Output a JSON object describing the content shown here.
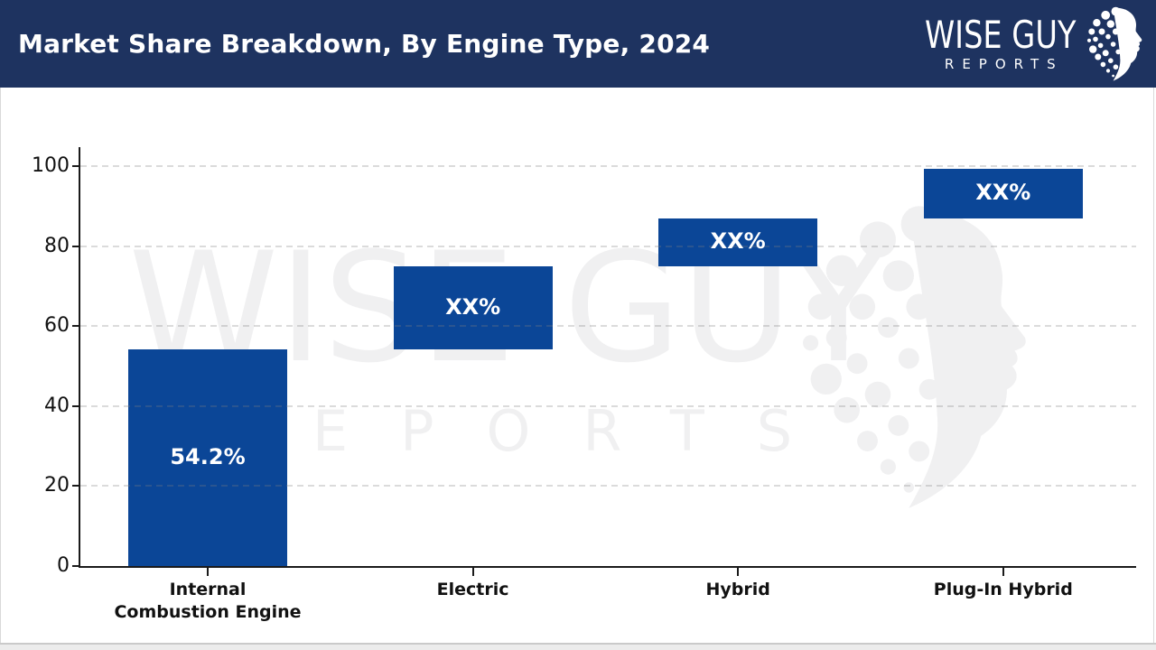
{
  "header": {
    "title": "Market Share Breakdown, By Engine Type, 2024",
    "logo": {
      "wordmark": "WISE GUY",
      "subtext": "REPORTS"
    }
  },
  "watermark": {
    "wordmark": "WISE GUY",
    "subtext": "REPORTS"
  },
  "colors": {
    "header_bg": "#1e3360",
    "bar": "#0b4697",
    "bar_label": "#ffffff",
    "grid": "#d9d9d9",
    "axis": "#1a1a1a",
    "watermark": "#f0f0f1"
  },
  "chart_data": {
    "type": "bar",
    "subtype": "waterfall",
    "title": "Market Share Breakdown, By Engine Type, 2024",
    "categories": [
      "Internal Combustion Engine",
      "Electric",
      "Hybrid",
      "Plug-In Hybrid"
    ],
    "series": [
      {
        "name": "Market share (%)",
        "segments": [
          {
            "category": "Internal Combustion Engine",
            "tick_label": "Internal\nCombustion Engine",
            "start": 0,
            "end": 54.2,
            "value": 54.2,
            "value_label": "54.2%"
          },
          {
            "category": "Electric",
            "tick_label": "Electric",
            "start": 54.2,
            "end": 75.0,
            "value": 20.8,
            "value_label": "XX%"
          },
          {
            "category": "Hybrid",
            "tick_label": "Hybrid",
            "start": 75.0,
            "end": 87.0,
            "value": 12.0,
            "value_label": "XX%"
          },
          {
            "category": "Plug-In Hybrid",
            "tick_label": "Plug-In Hybrid",
            "start": 87.0,
            "end": 99.3,
            "value": 12.3,
            "value_label": "XX%"
          }
        ]
      }
    ],
    "xlabel": "",
    "ylabel": "",
    "y_ticks": [
      0,
      20,
      40,
      60,
      80,
      100
    ],
    "ylim": [
      0,
      105
    ],
    "grid": "horizontal-dashed",
    "legend": "none"
  }
}
